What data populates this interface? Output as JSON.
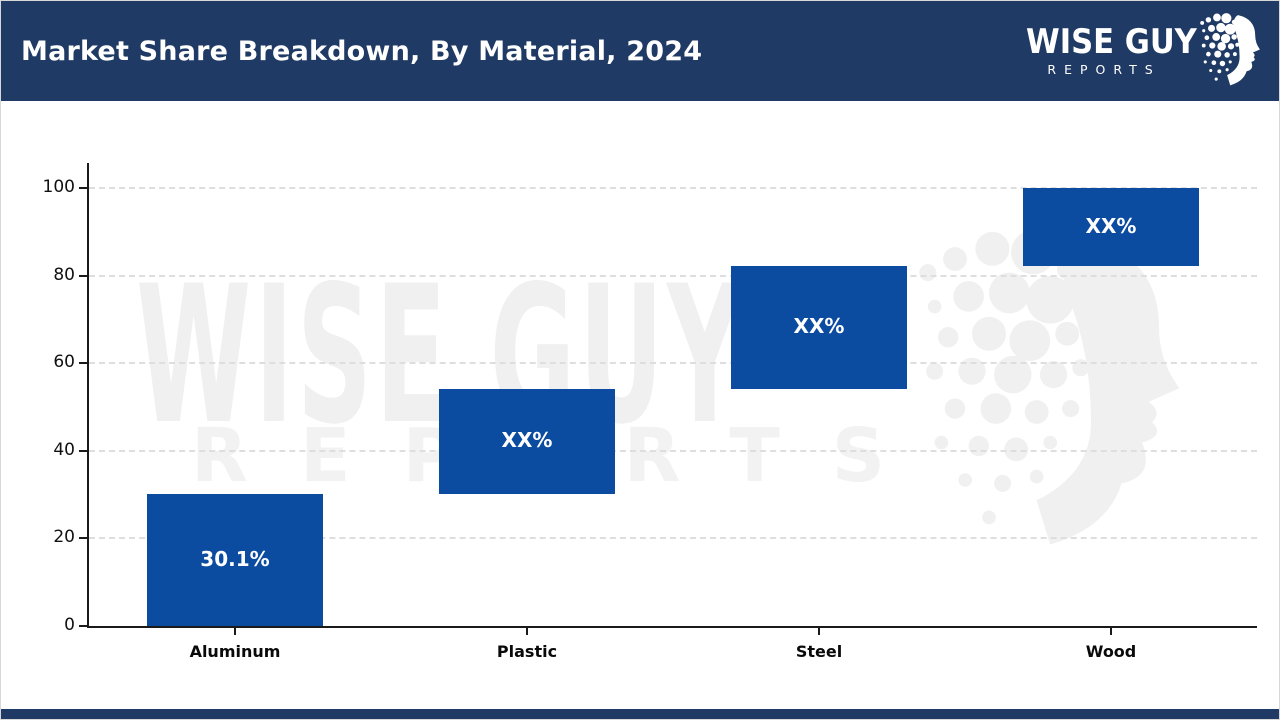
{
  "header": {
    "title": "Market Share Breakdown, By Material, 2024",
    "logo": {
      "line1": "WISE GUY",
      "line2": "REPORTS"
    }
  },
  "watermark": {
    "line1": "WISE GUY",
    "line2": "REPORTS"
  },
  "chart_data": {
    "type": "bar",
    "subtype": "waterfall",
    "title": "Market Share Breakdown, By Material, 2024",
    "categories": [
      "Aluminum",
      "Plastic",
      "Steel",
      "Wood"
    ],
    "segments": [
      {
        "category": "Aluminum",
        "start": 0,
        "end": 30.1,
        "value": 30.1,
        "label": "30.1%"
      },
      {
        "category": "Plastic",
        "start": 30.1,
        "end": 54.2,
        "value": 24.1,
        "label": "XX%"
      },
      {
        "category": "Steel",
        "start": 54.2,
        "end": 82.3,
        "value": 28.1,
        "label": "XX%"
      },
      {
        "category": "Wood",
        "start": 82.3,
        "end": 100,
        "value": 17.7,
        "label": "XX%"
      }
    ],
    "xlabel": "",
    "ylabel": "",
    "ylim": [
      0,
      105
    ],
    "yticks": [
      0,
      20,
      40,
      60,
      80,
      100
    ],
    "grid": "horizontal-dashed",
    "legend": "none",
    "bar_color": "#0b4ba0",
    "bar_label_color": "#ffffff"
  },
  "colors": {
    "header_navy": "#1f3a64",
    "bar_blue": "#0b4ba0",
    "gridline": "#dedede",
    "watermark_gray": "#f0f0f0"
  }
}
